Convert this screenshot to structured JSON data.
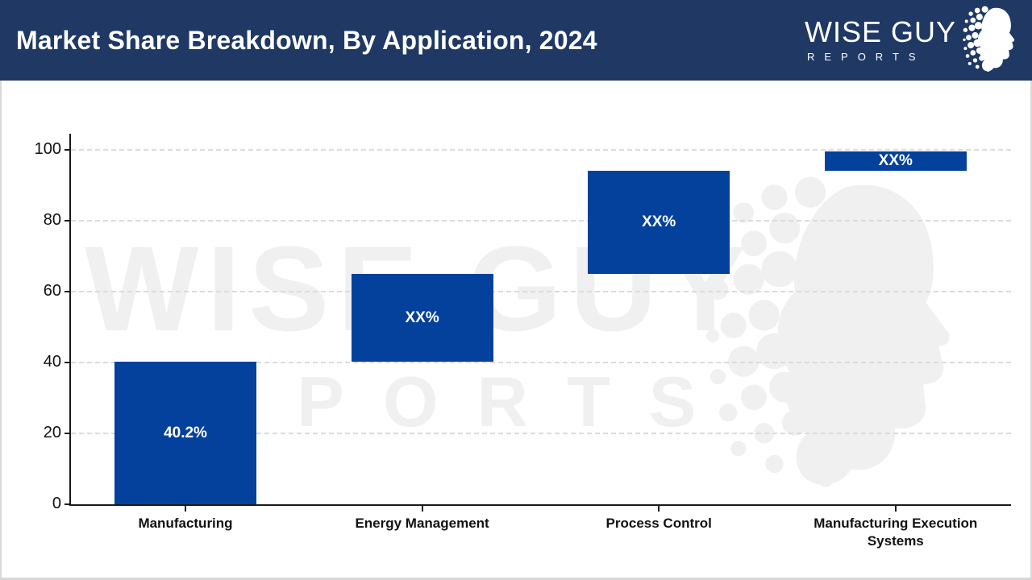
{
  "header": {
    "title": "Market Share Breakdown, By Application, 2024",
    "logo": {
      "name": "WISE GUY",
      "sub": "REPORTS"
    }
  },
  "watermark": {
    "name": "WISE GUY",
    "sub": "REPORTS"
  },
  "chart_data": {
    "type": "bar",
    "subtype": "waterfall",
    "title": "Market Share Breakdown, By Application, 2024",
    "categories": [
      "Manufacturing",
      "Energy Management",
      "Process Control",
      "Manufacturing Execution Systems"
    ],
    "segments": [
      {
        "category": "Manufacturing",
        "start": 0,
        "end": 40.2,
        "label": "40.2%"
      },
      {
        "category": "Energy Management",
        "start": 40.2,
        "end": 65,
        "label": "XX%"
      },
      {
        "category": "Process Control",
        "start": 65,
        "end": 94.2,
        "label": "XX%"
      },
      {
        "category": "Manufacturing Execution Systems",
        "start": 94.2,
        "end": 99.6,
        "label": "XX%"
      }
    ],
    "ylim": [
      0,
      100
    ],
    "yticks": [
      0,
      20,
      40,
      60,
      80,
      100
    ],
    "xlabel": "",
    "ylabel": "",
    "grid": {
      "horizontal": true,
      "style": "dashed"
    },
    "legend": null,
    "bar_color": "#04419C",
    "bar_label_color": "#FFFFFF"
  },
  "colors": {
    "header_bg": "#1F3864",
    "bar": "#04419C",
    "grid_line": "#DBDBDB",
    "axis": "#1A1A1A",
    "watermark": "#F0F0F0",
    "page_border": "#D8D8D8"
  }
}
